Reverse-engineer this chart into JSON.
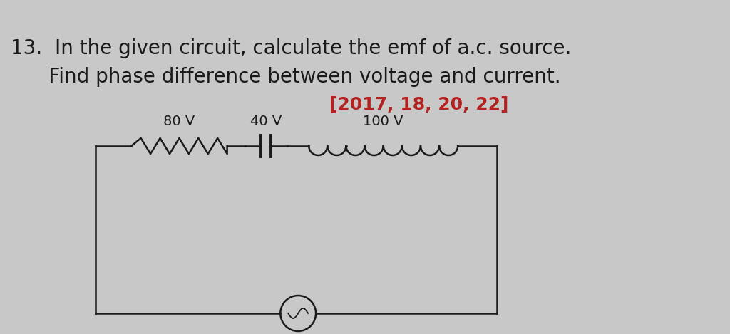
{
  "background_color": "#c8c8c8",
  "line1": "13.  In the given circuit, calculate the emf of a.c. source.",
  "line2": "      Find phase difference between voltage and current.",
  "line3": "[2017, 18, 20, 22]",
  "label_R": "80 V",
  "label_C": "40 V",
  "label_L": "100 V",
  "text_color": "#1a1a1a",
  "red_color": "#b52020",
  "circuit_color": "#1a1a1a",
  "font_size_main": 20,
  "font_size_ref": 18,
  "font_size_component": 14
}
